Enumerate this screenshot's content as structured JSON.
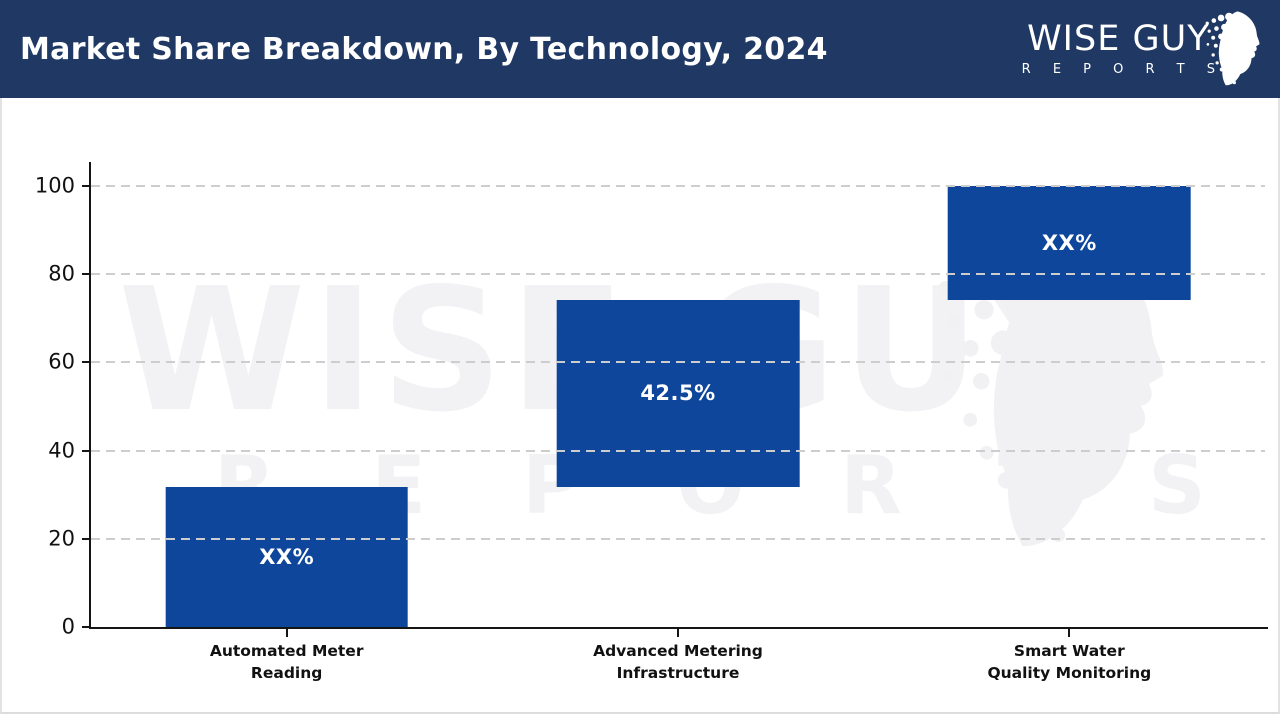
{
  "header": {
    "title": "Market Share Breakdown, By Technology, 2024",
    "bg_color": "#1f3864",
    "logo": {
      "line1": "WISE GUY",
      "line2": "R E P O R T S"
    }
  },
  "watermark": {
    "line1": "WISE GUY",
    "line2": "R E P O R T S"
  },
  "chart_data": {
    "type": "bar",
    "subtype": "waterfall",
    "title": "Market Share Breakdown, By Technology, 2024",
    "categories": [
      "Automated Meter\nReading",
      "Advanced Metering\nInfrastructure",
      "Smart Water\nQuality Monitoring"
    ],
    "bars": [
      {
        "category": "Automated Meter Reading",
        "base": 0,
        "top": 31.7,
        "value": 31.7,
        "label": "XX%"
      },
      {
        "category": "Advanced Metering Infrastructure",
        "base": 31.7,
        "top": 74.2,
        "value": 42.5,
        "label": "42.5%"
      },
      {
        "category": "Smart Water Quality Monitoring",
        "base": 74.2,
        "top": 100,
        "value": 25.8,
        "label": "XX%"
      }
    ],
    "yticks": [
      0,
      20,
      40,
      60,
      80,
      100
    ],
    "ylim": [
      0,
      100
    ],
    "xlabel": "",
    "ylabel": "",
    "bar_color": "#0d469b",
    "bar_label_color": "#ffffff",
    "grid": "horizontal-dashed",
    "legend": "none"
  }
}
